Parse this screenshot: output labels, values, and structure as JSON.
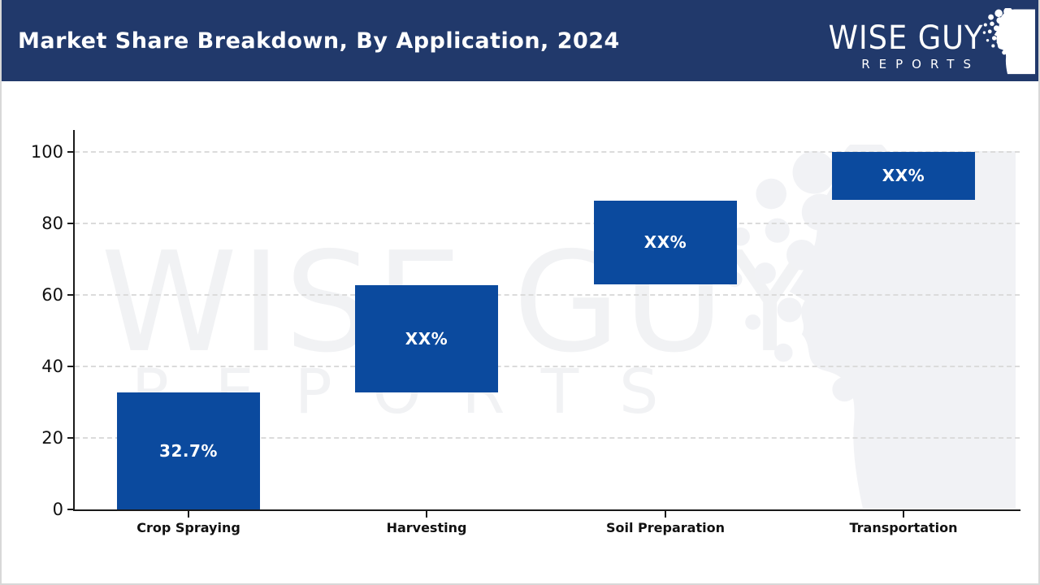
{
  "header": {
    "title": "Market Share Breakdown, By Application, 2024",
    "brand": {
      "wordmark": "WISE GUY",
      "subtext": "REPORTS"
    }
  },
  "watermark": {
    "wordmark": "WISE GUY",
    "subtext": "REPORTS"
  },
  "colors": {
    "header_bg": "#21396B",
    "bar": "#0B4A9E",
    "bar_label": "#FFFFFF",
    "gridline": "#DBDBDB",
    "axis": "#1A1A1A",
    "watermark": "#F1F2F4",
    "page_border": "#D8D8D8"
  },
  "chart_data": {
    "type": "bar",
    "subtype": "waterfall",
    "title": "Market Share Breakdown, By Application, 2024",
    "categories": [
      "Crop Spraying",
      "Harvesting",
      "Soil Preparation",
      "Transportation"
    ],
    "segments": [
      {
        "category": "Crop Spraying",
        "start": 0,
        "end": 32.7,
        "label": "32.7%"
      },
      {
        "category": "Harvesting",
        "start": 32.7,
        "end": 62.7,
        "label": "XX%"
      },
      {
        "category": "Soil Preparation",
        "start": 63,
        "end": 86.4,
        "label": "XX%"
      },
      {
        "category": "Transportation",
        "start": 86.6,
        "end": 100,
        "label": "XX%"
      }
    ],
    "yticks": [
      0,
      20,
      40,
      60,
      80,
      100
    ],
    "ylim": [
      0,
      106
    ],
    "xlabel": "",
    "ylabel": "",
    "grid": "dashed-horizontal",
    "legend": "none"
  }
}
